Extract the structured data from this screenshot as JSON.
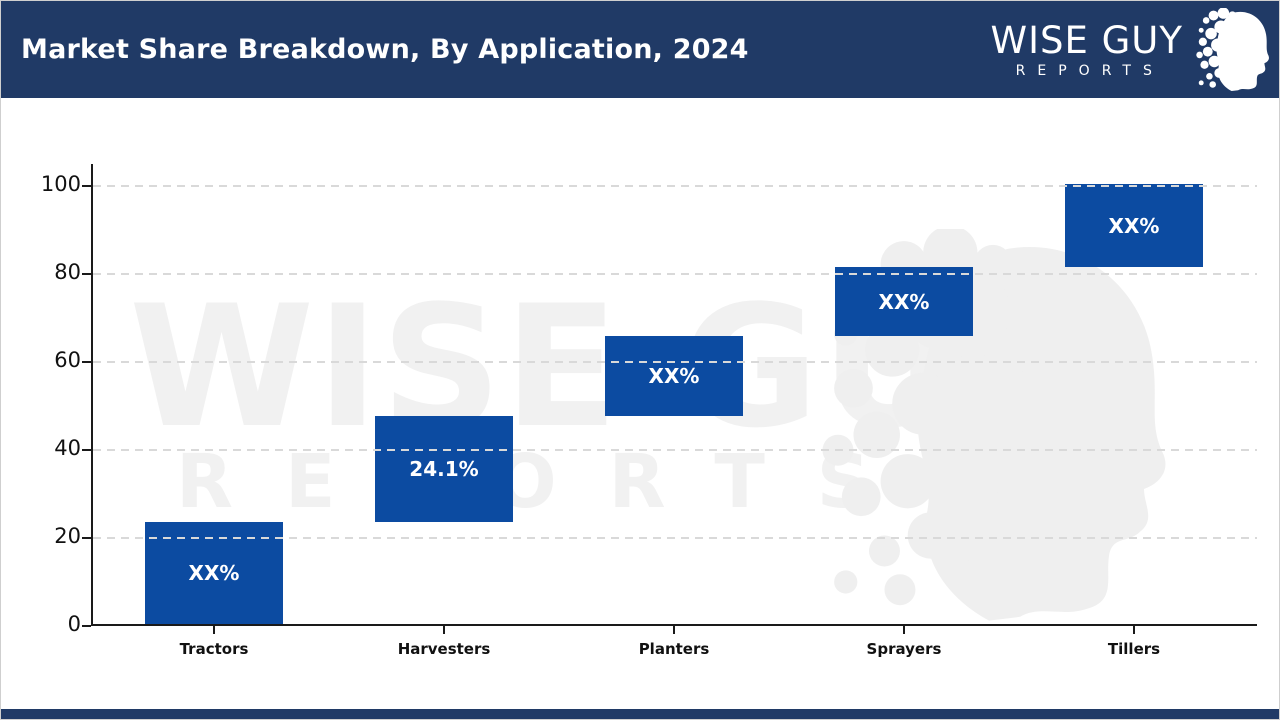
{
  "header": {
    "title": "Market Share Breakdown, By Application, 2024",
    "logo_line1": "WISE GUY",
    "logo_line2": "REPORTS"
  },
  "watermark": {
    "line1": "WISE GUY",
    "line2": "REPORTS"
  },
  "colors": {
    "header_bg": "#203a66",
    "footer_bg": "#203a66",
    "bar": "#0c4ba1",
    "grid": "#d9d9d9",
    "axis": "#1a1a1a",
    "bar_label_text": "#ffffff",
    "watermark": "#f1f1f1"
  },
  "chart_data": {
    "type": "bar",
    "subtype": "waterfall-floating-bars",
    "title": "Market Share Breakdown, By Application, 2024",
    "xlabel": "",
    "ylabel": "",
    "categories": [
      "Tractors",
      "Harvesters",
      "Planters",
      "Sprayers",
      "Tillers"
    ],
    "segments": [
      {
        "category": "Tractors",
        "start": 0,
        "end": 23.2,
        "height": 23.2,
        "label": "XX%"
      },
      {
        "category": "Harvesters",
        "start": 23.2,
        "end": 47.3,
        "height": 24.1,
        "label": "24.1%"
      },
      {
        "category": "Planters",
        "start": 47.3,
        "end": 65.5,
        "height": 18.2,
        "label": "XX%"
      },
      {
        "category": "Sprayers",
        "start": 65.5,
        "end": 81.1,
        "height": 15.6,
        "label": "XX%"
      },
      {
        "category": "Tillers",
        "start": 81.1,
        "end": 100,
        "height": 18.9,
        "label": "XX%"
      }
    ],
    "ylim": [
      0,
      105
    ],
    "yticks": [
      0,
      20,
      40,
      60,
      80,
      100
    ],
    "grid": "horizontal-dashed",
    "legend": "none"
  }
}
